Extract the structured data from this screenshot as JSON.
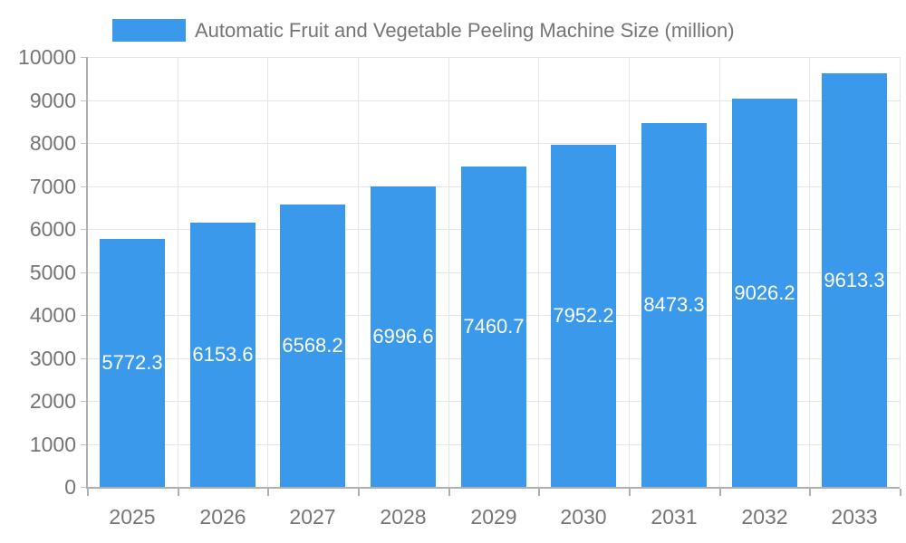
{
  "chart_data": {
    "type": "bar",
    "title": "Automatic Fruit and Vegetable Peeling Machine Size (million)",
    "legend_position": "top",
    "categories": [
      "2025",
      "2026",
      "2027",
      "2028",
      "2029",
      "2030",
      "2031",
      "2032",
      "2033"
    ],
    "values": [
      5772.3,
      6153.6,
      6568.2,
      6996.6,
      7460.7,
      7952.2,
      8473.3,
      9026.2,
      9613.3
    ],
    "value_labels": [
      "5772.3",
      "6153.6",
      "6568.2",
      "6996.6",
      "7460.7",
      "7952.2",
      "8473.3",
      "9026.2",
      "9613.3"
    ],
    "xlabel": "",
    "ylabel": "",
    "ylim": [
      0,
      10000
    ],
    "yticks": [
      0,
      1000,
      2000,
      3000,
      4000,
      5000,
      6000,
      7000,
      8000,
      9000,
      10000
    ],
    "grid": "both",
    "colors": {
      "bar": "#3B99EC",
      "grid": "#E6E6E6",
      "axis": "#B0B0B0",
      "tick": "#C4C4C4",
      "text": "#757575",
      "value_label": "#FFFFFF",
      "background": "#FFFFFF"
    }
  }
}
